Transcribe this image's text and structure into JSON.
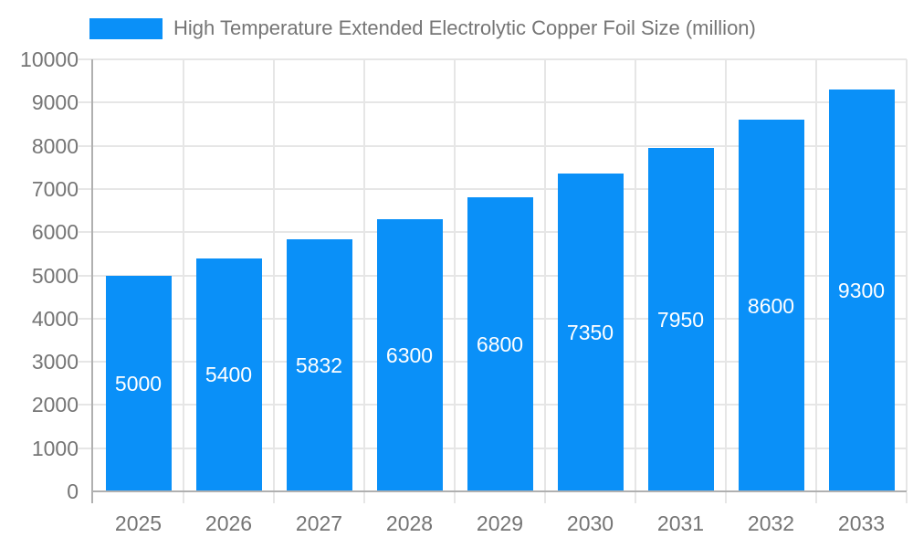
{
  "chart_data": {
    "type": "bar",
    "title": "High Temperature Extended Electrolytic Copper Foil Size (million)",
    "legend_position": "top-left",
    "categories": [
      "2025",
      "2026",
      "2027",
      "2028",
      "2029",
      "2030",
      "2031",
      "2032",
      "2033"
    ],
    "series": [
      {
        "name": "High Temperature Extended Electrolytic Copper Foil Size (million)",
        "values": [
          5000,
          5400,
          5832,
          6300,
          6800,
          7350,
          7950,
          8600,
          9300
        ]
      }
    ],
    "bar_labels": [
      "5000",
      "5400",
      "5832",
      "6300",
      "6800",
      "7350",
      "7950",
      "8600",
      "9300"
    ],
    "xlabel": "",
    "ylabel": "",
    "ylim": [
      0,
      10000
    ],
    "ytick_interval": 1000,
    "ytick_labels": [
      "0",
      "1000",
      "2000",
      "3000",
      "4000",
      "5000",
      "6000",
      "7000",
      "8000",
      "9000",
      "10000"
    ],
    "grid": true
  },
  "colors": {
    "bar": "#0a90f8",
    "gridline": "#e6e6e6",
    "axis_line": "#b0b0b0",
    "tick_label": "#757575",
    "bar_label": "#ffffff",
    "background": "#ffffff"
  }
}
